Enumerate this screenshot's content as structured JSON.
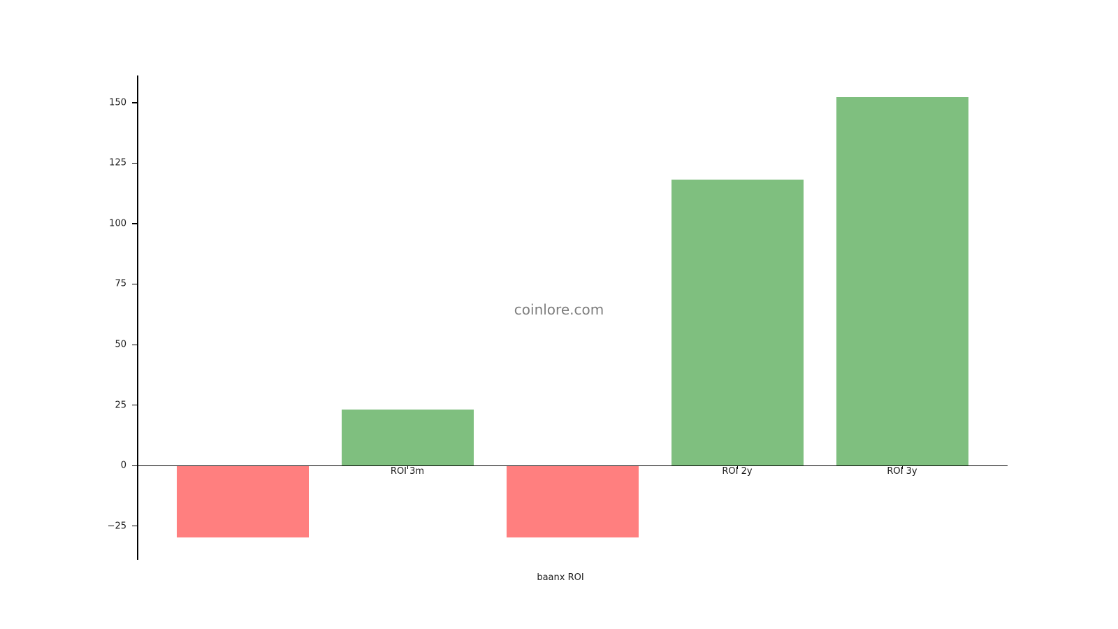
{
  "chart_data": {
    "type": "bar",
    "categories": [
      "",
      "ROI 3m",
      "",
      "ROI 2y",
      "ROI 3y"
    ],
    "values": [
      -30,
      23,
      -30,
      118,
      152
    ],
    "series_note": "single series; first and third category labels are hidden behind the negative bars",
    "title": "",
    "xlabel": "baanx ROI",
    "ylabel": "",
    "yticks": [
      150,
      125,
      100,
      75,
      50,
      25,
      0,
      -25
    ],
    "ylim": [
      -39.1,
      161.1
    ],
    "grid": "off",
    "legend": "none",
    "positive_color": "#7fbf7f",
    "negative_color": "#ff7f7f",
    "axis_color": "#000000",
    "watermark": "coinlore.com",
    "watermark_color": "#7d7d7d"
  }
}
